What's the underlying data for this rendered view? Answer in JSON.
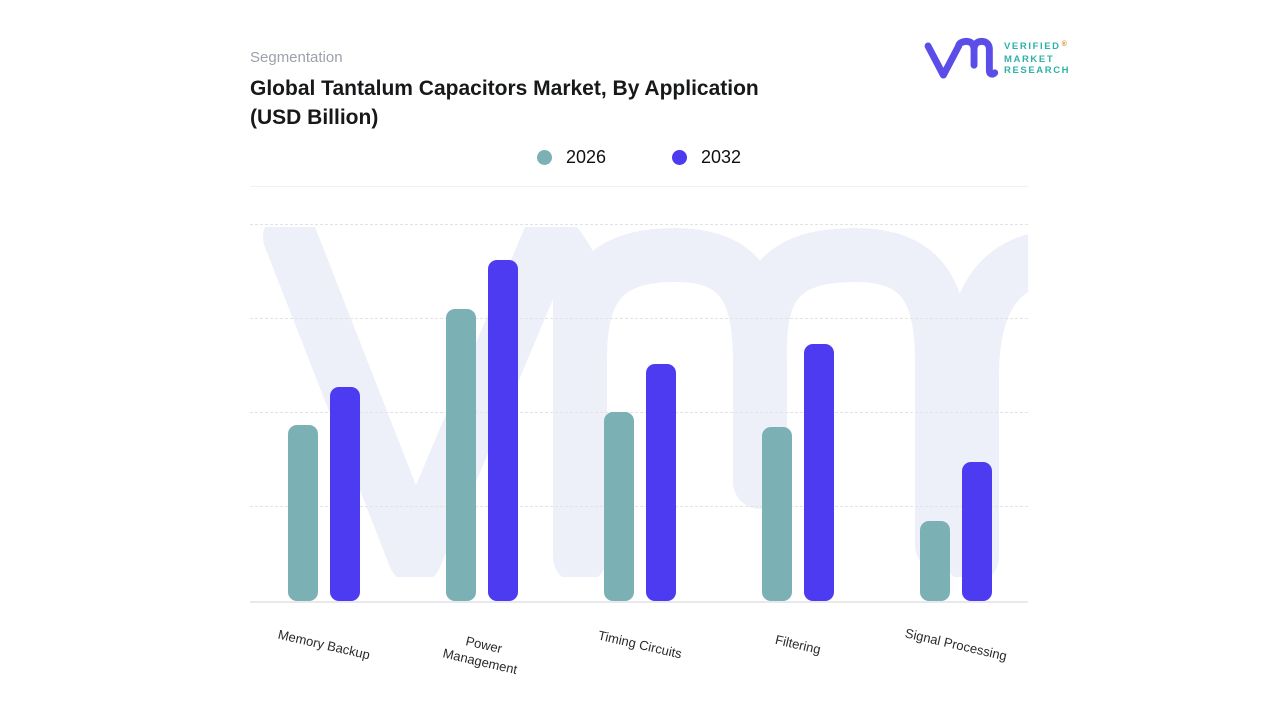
{
  "header": {
    "eyebrow": "Segmentation",
    "title_line1": "Global Tantalum Capacitors Market, By Application",
    "title_line2": "(USD Billion)"
  },
  "logo": {
    "line1": "VERIFIED",
    "registered_mark": "®",
    "line2": "MARKET",
    "line3": "RESEARCH",
    "glyph_color": "#5B4EE8",
    "text_color": "#2EB2A8"
  },
  "legend": [
    {
      "label": "2026",
      "color": "#7BB1B4"
    },
    {
      "label": "2032",
      "color": "#4C3BF0"
    }
  ],
  "chart_data": {
    "type": "bar",
    "title": "Global Tantalum Capacitors Market, By Application (USD Billion)",
    "xlabel": "",
    "ylabel": "",
    "categories": [
      "Memory Backup",
      "Power Management",
      "Timing Circuits",
      "Filtering",
      "Signal Processing"
    ],
    "category_labels": [
      "Memory Backup",
      "Power\nManagement",
      "Timing Circuits",
      "Filtering",
      "Signal Processing"
    ],
    "series": [
      {
        "name": "2026",
        "color": "#7BB1B4",
        "values": [
          1.87,
          3.11,
          2.01,
          1.85,
          0.85
        ]
      },
      {
        "name": "2032",
        "color": "#4C3BF0",
        "values": [
          2.28,
          3.63,
          2.52,
          2.73,
          1.48
        ]
      }
    ],
    "ylim": [
      0,
      4.44
    ],
    "gridline_interval": 1,
    "grid": "horizontal dashed, no numeric tick labels shown",
    "legend_position": "top-center",
    "value_units": "relative gridline units (y-axis labels not displayed in image)"
  },
  "colors": {
    "series_2026": "#7BB1B4",
    "series_2032": "#4C3BF0",
    "watermark": "#EEF0F9",
    "gridline": "#E3E3E6",
    "axis_line": "#E9E9EB",
    "title_text": "#17181A",
    "eyebrow_text": "#9BA1AA",
    "background": "#FFFFFF"
  }
}
